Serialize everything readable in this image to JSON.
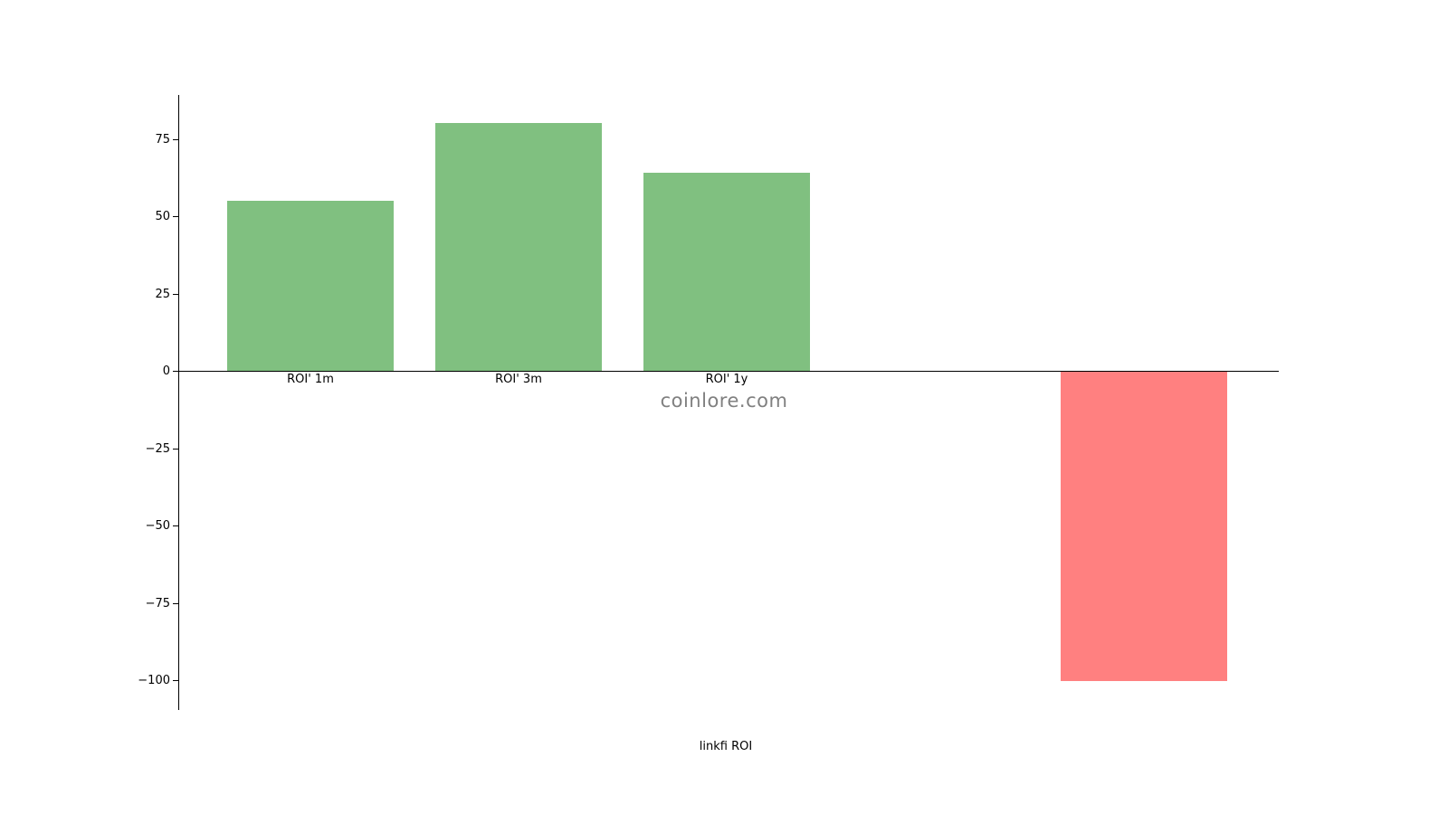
{
  "watermark": {
    "text": "coinlore.com",
    "color": "#808080"
  },
  "chart_data": {
    "type": "bar",
    "title": "",
    "xlabel": "linkfi ROI",
    "ylabel": "",
    "categories": [
      "ROI' 1m",
      "ROI' 3m",
      "ROI' 1y",
      ""
    ],
    "values": [
      55,
      80,
      64,
      -100
    ],
    "series": [
      {
        "name": "linkfi ROI",
        "values": [
          55,
          80,
          64,
          -100
        ]
      }
    ],
    "bar_colors": {
      "positive": "#80C080",
      "negative": "#FF8080"
    },
    "yticks": [
      75,
      50,
      25,
      0,
      -25,
      -50,
      -75,
      -100
    ],
    "ylim": [
      -110,
      90
    ],
    "grid": false,
    "legend": "none",
    "axis_color": "#000000"
  }
}
